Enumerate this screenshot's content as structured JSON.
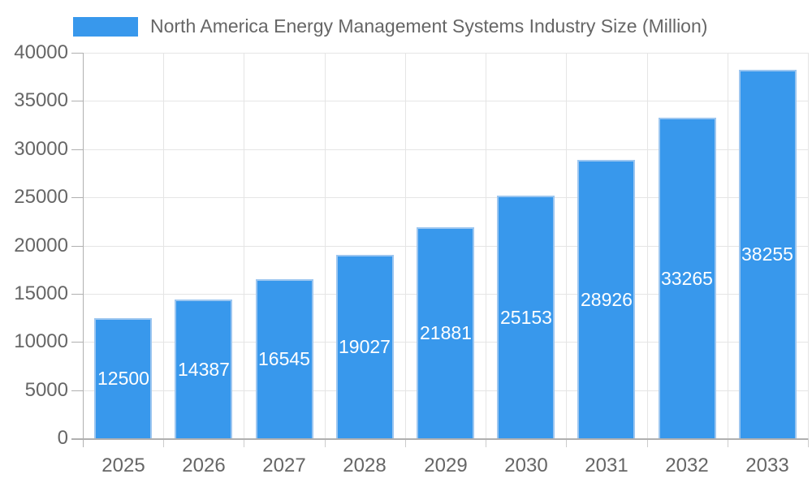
{
  "legend": {
    "label": "North America Energy Management Systems Industry Size (Million)"
  },
  "chart_data": {
    "type": "bar",
    "title": "North America Energy Management Systems Industry Size (Million)",
    "categories": [
      "2025",
      "2026",
      "2027",
      "2028",
      "2029",
      "2030",
      "2031",
      "2032",
      "2033"
    ],
    "values": [
      12500,
      14387,
      16545,
      19027,
      21881,
      25153,
      28926,
      33265,
      38255
    ],
    "series": [
      {
        "name": "North America Energy Management Systems Industry Size (Million)",
        "values": [
          12500,
          14387,
          16545,
          19027,
          21881,
          25153,
          28926,
          33265,
          38255
        ]
      }
    ],
    "xlabel": "",
    "ylabel": "",
    "ylim": [
      0,
      40000
    ],
    "ytick_step": 5000,
    "ytick_labels": [
      "0",
      "5000",
      "10000",
      "15000",
      "20000",
      "25000",
      "30000",
      "35000",
      "40000"
    ],
    "grid": true,
    "legend_position": "top-left",
    "value_labels": "inside-center",
    "colors": {
      "bar_fill": "#3898EC",
      "bar_edge": "#9CC6F0",
      "value_label_text": "#FFFFFF",
      "axis_text": "#666666",
      "gridline": "#E5E5E5",
      "axis_line": "#B0B0B0",
      "background": "#FFFFFF"
    }
  }
}
